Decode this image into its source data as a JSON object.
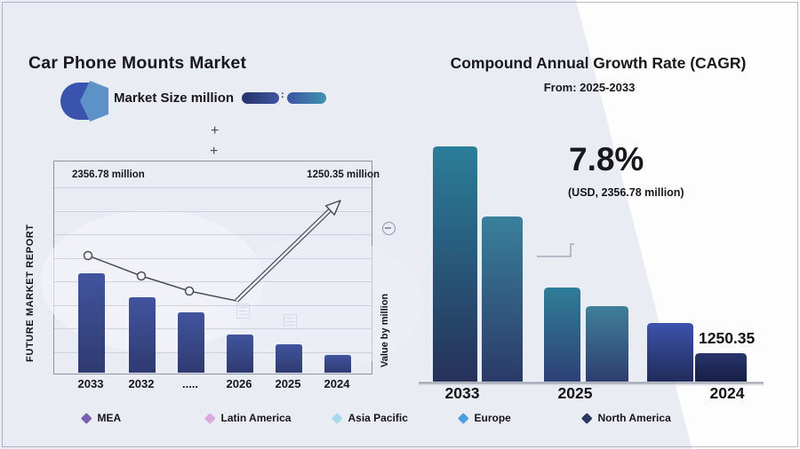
{
  "page": {
    "background": "#e9ecf3",
    "frame_color": "#878e9c"
  },
  "left_panel": {
    "title": "Car Phone Mounts Market",
    "market_size_label": "Market Size million",
    "ratio_separator": ":",
    "plus_mark": "+",
    "side_watermark": "FUTURE MARKET REPORT",
    "start_value_label": "2356.78 million",
    "end_value_label": "1250.35 million",
    "y_axis_label": "Value by million",
    "x_labels": [
      "2033",
      "2032",
      ".....",
      "2026",
      "2025",
      "2024"
    ]
  },
  "right_panel": {
    "title": "Compound Annual Growth Rate (CAGR)",
    "subtitle": "From: 2025-2033",
    "cagr_value": "7.8%",
    "cagr_note": "(USD, 2356.78 million)",
    "callout_value": "1250.35",
    "x_labels": [
      "2033",
      "2025",
      "2024"
    ]
  },
  "legend": {
    "items": [
      {
        "label": "MEA",
        "color": "#7a5fb3"
      },
      {
        "label": "Latin America",
        "color": "#d9aadc"
      },
      {
        "label": "Asia Pacific",
        "color": "#a6d9ea"
      },
      {
        "label": "Europe",
        "color": "#4aa0dc"
      },
      {
        "label": "North America",
        "color": "#2b3763"
      }
    ]
  },
  "chart_data": [
    {
      "type": "bar",
      "title": "Car Phone Mounts Market",
      "ylabel": "Value by million",
      "categories": [
        "2033",
        "2032",
        ".....",
        "2026",
        "2025",
        "2024"
      ],
      "values_million": [
        2356.78,
        null,
        null,
        null,
        null,
        1250.35
      ],
      "relative_heights": [
        1.0,
        0.76,
        0.61,
        0.38,
        0.29,
        0.18
      ],
      "annotations": [
        "2356.78 million",
        "1250.35 million"
      ],
      "trend_note": "line with circular markers declines from 2033 to 2026, then outlined arrow rises to upper right",
      "bar_color_top": "#41549e",
      "bar_color_bottom": "#2f3a70",
      "grid": true,
      "legend_position": "bottom"
    },
    {
      "type": "bar",
      "title": "Compound Annual Growth Rate (CAGR)",
      "subtitle": "From: 2025-2033",
      "categories": [
        "2033",
        "2025",
        "2024"
      ],
      "series": [
        {
          "name": "bar-a",
          "relative_heights": [
            1.0,
            0.4,
            0.25
          ]
        },
        {
          "name": "bar-b",
          "relative_heights": [
            0.7,
            0.32,
            0.12
          ]
        }
      ],
      "cagr_percent": 7.8,
      "labeled_values_million": {
        "2033": 2356.78,
        "2024": 1250.35
      },
      "bar_gradient_top": "#2a7e99",
      "bar_gradient_bottom": "#1c2450"
    }
  ]
}
